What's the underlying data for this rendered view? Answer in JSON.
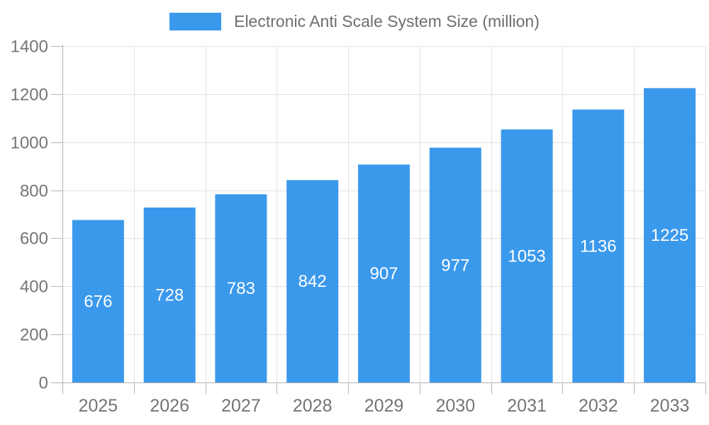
{
  "chart_data": {
    "type": "bar",
    "title": "Electronic Anti Scale System Size (million)",
    "categories": [
      "2025",
      "2026",
      "2027",
      "2028",
      "2029",
      "2030",
      "2031",
      "2032",
      "2033"
    ],
    "series": [
      {
        "name": "Electronic Anti Scale System Size (million)",
        "values": [
          676,
          728,
          783,
          842,
          907,
          977,
          1053,
          1136,
          1225
        ]
      }
    ],
    "value_labels_shown": true,
    "xlabel": "",
    "ylabel": "",
    "ylim": [
      0,
      1400
    ],
    "yticks": [
      0,
      200,
      400,
      600,
      800,
      1000,
      1200,
      1400
    ],
    "grid": true,
    "legend_position": "top-center",
    "colors": {
      "bar": "#3b99ec",
      "value_label": "#ffffff",
      "axis_label": "#757575",
      "legend_text": "#6e6e6e",
      "gridline": "#e3e3e3",
      "axis_line": "#b3b3b3",
      "background": "#ffffff"
    }
  }
}
